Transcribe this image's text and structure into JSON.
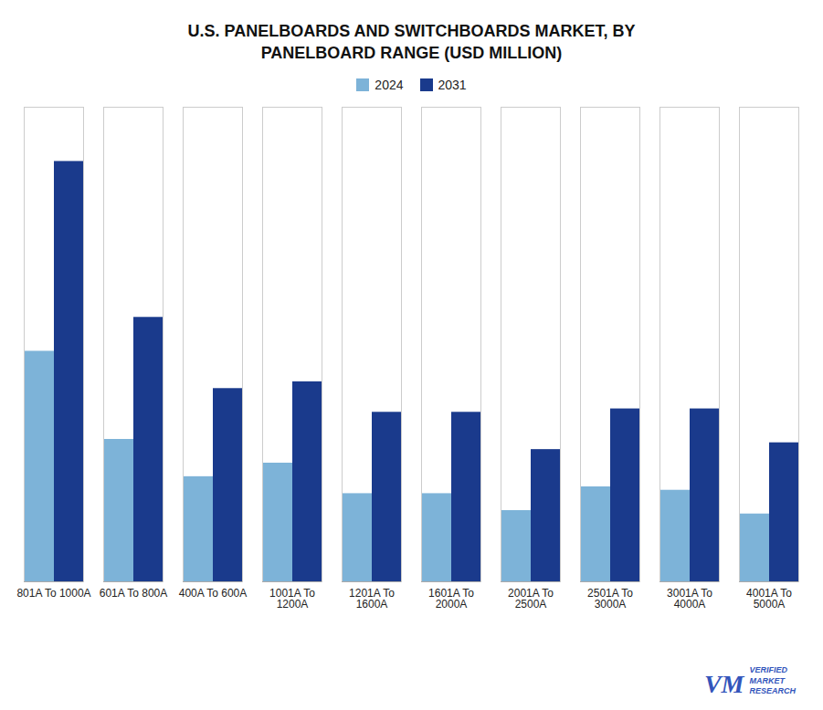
{
  "chart_data": {
    "type": "bar",
    "title": "U.S. PANELBOARDS AND SWITCHBOARDS MARKET, BY\nPANELBOARD RANGE (USD MILLION)",
    "categories": [
      "801A To 1000A",
      "601A To 800A",
      "400A To 600A",
      "1001A To\n1200A",
      "1201A To\n1600A",
      "1601A To\n2000A",
      "2001A To\n2500A",
      "2501A To\n3000A",
      "3001A To\n4000A",
      "4001A To\n5000A"
    ],
    "series": [
      {
        "name": "2024",
        "color": "#7db3d8",
        "values": [
          340,
          210,
          155,
          175,
          130,
          130,
          105,
          140,
          135,
          100
        ]
      },
      {
        "name": "2031",
        "color": "#1a3a8c",
        "values": [
          620,
          390,
          285,
          295,
          250,
          250,
          195,
          255,
          255,
          205
        ]
      }
    ],
    "ylim": [
      0,
      700
    ],
    "tick_labels": "x",
    "legend": "upper center",
    "annotations": [
      {
        "text": "VM",
        "color": "#3355bb"
      },
      {
        "text": "VERIFIED\nMARKET\nRESEARCH",
        "color": "#3355bb"
      }
    ]
  }
}
